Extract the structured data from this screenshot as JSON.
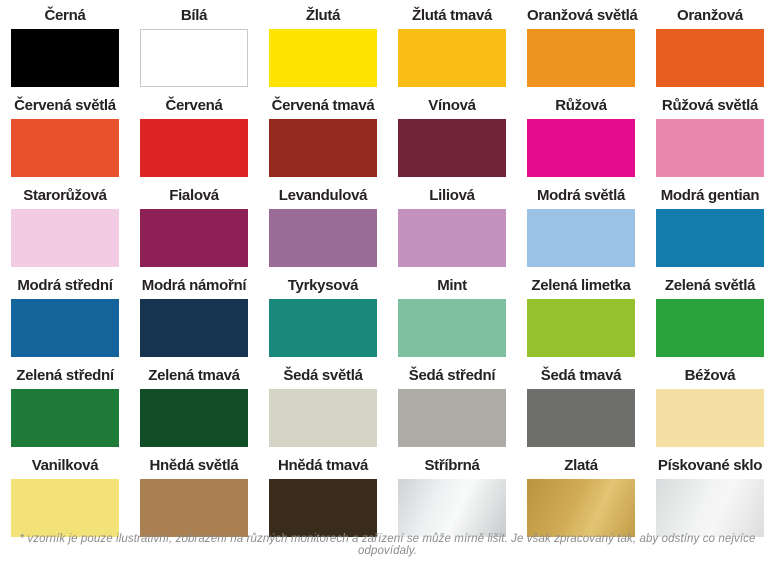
{
  "page": {
    "background": "#ffffff",
    "label_text_color": "#262223"
  },
  "footer": {
    "note": "* vzorník je pouze ilustrativní, zobrazení na různých monitorech a zařízení se může mírně lišit. Je však zpracovaný tak, aby odstíny co nejvíce odpovídaly."
  },
  "chart_data": {
    "type": "table",
    "title": "",
    "columns": [
      "name",
      "color"
    ],
    "rows": [
      [
        "Černá",
        "#000000"
      ],
      [
        "Bílá",
        "#ffffff"
      ],
      [
        "Žlutá",
        "#fce300"
      ],
      [
        "Žlutá tmavá",
        "#f8be15"
      ],
      [
        "Oranžová světlá",
        "#ef931f"
      ],
      [
        "Oranžová",
        "#e65e20"
      ],
      [
        "Červená světlá",
        "#e8512d"
      ],
      [
        "Červená",
        "#dc2423"
      ],
      [
        "Červená tmavá",
        "#95291f"
      ],
      [
        "Vínová",
        "#6f2437"
      ],
      [
        "Růžová",
        "#e50c8e"
      ],
      [
        "Růžová světlá",
        "#ea87ad"
      ],
      [
        "Starorůžová",
        "#f2cce2"
      ],
      [
        "Fialová",
        "#8d2156"
      ],
      [
        "Levandulová",
        "#9a6d99"
      ],
      [
        "Liliová",
        "#c492be"
      ],
      [
        "Modrá světlá",
        "#9bc2e5"
      ],
      [
        "Modrá gentian",
        "#147cad"
      ],
      [
        "Modrá střední",
        "#14639b"
      ],
      [
        "Modrá námořní",
        "#16334f"
      ],
      [
        "Tyrkysová",
        "#19897c"
      ],
      [
        "Mint",
        "#7dbf9e"
      ],
      [
        "Zelená limetka",
        "#95c12e"
      ],
      [
        "Zelená světlá",
        "#2ba33d"
      ],
      [
        "Zelená střední",
        "#1e7b37"
      ],
      [
        "Zelená tmavá",
        "#114e27"
      ],
      [
        "Šedá světlá",
        "#d6d3c7"
      ],
      [
        "Šedá střední",
        "#aeaca7"
      ],
      [
        "Šedá tmavá",
        "#6e6e6d"
      ],
      [
        "Béžová",
        "#f5e0a3"
      ],
      [
        "Vanilková",
        "#f3e278"
      ],
      [
        "Hnědá světlá",
        "#aa8052"
      ],
      [
        "Hnědá tmavá",
        "#3a2c1b"
      ],
      [
        "Stříbrná",
        "silver-gradient"
      ],
      [
        "Zlatá",
        "gold-gradient"
      ],
      [
        "Pískované sklo",
        "frosted-glass-gradient"
      ]
    ]
  },
  "swatches": [
    {
      "label": "Černá",
      "color": "#000000"
    },
    {
      "label": "Bílá",
      "color": "#ffffff",
      "border": "#c9c9c9"
    },
    {
      "label": "Žlutá",
      "color": "#fce300"
    },
    {
      "label": "Žlutá tmavá",
      "color": "#f8be15"
    },
    {
      "label": "Oranžová světlá",
      "color": "#ef931f"
    },
    {
      "label": "Oranžová",
      "color": "#e65e20"
    },
    {
      "label": "Červená světlá",
      "color": "#e8512d"
    },
    {
      "label": "Červená",
      "color": "#dc2423"
    },
    {
      "label": "Červená tmavá",
      "color": "#95291f"
    },
    {
      "label": "Vínová",
      "color": "#6f2437"
    },
    {
      "label": "Růžová",
      "color": "#e50c8e"
    },
    {
      "label": "Růžová světlá",
      "color": "#ea87ad"
    },
    {
      "label": "Starorůžová",
      "color": "#f2cce2"
    },
    {
      "label": "Fialová",
      "color": "#8d2156"
    },
    {
      "label": "Levandulová",
      "color": "#9a6d99"
    },
    {
      "label": "Liliová",
      "color": "#c492be"
    },
    {
      "label": "Modrá světlá",
      "color": "#9bc2e5"
    },
    {
      "label": "Modrá gentian",
      "color": "#147cad"
    },
    {
      "label": "Modrá střední",
      "color": "#14639b"
    },
    {
      "label": "Modrá námořní",
      "color": "#16334f"
    },
    {
      "label": "Tyrkysová",
      "color": "#19897c"
    },
    {
      "label": "Mint",
      "color": "#7dbf9e"
    },
    {
      "label": "Zelená limetka",
      "color": "#95c12e"
    },
    {
      "label": "Zelená světlá",
      "color": "#2ba33d"
    },
    {
      "label": "Zelená střední",
      "color": "#1e7b37"
    },
    {
      "label": "Zelená tmavá",
      "color": "#114e27"
    },
    {
      "label": "Šedá světlá",
      "color": "#d6d3c7"
    },
    {
      "label": "Šedá střední",
      "color": "#aeaca7"
    },
    {
      "label": "Šedá tmavá",
      "color": "#6e6e6d"
    },
    {
      "label": "Béžová",
      "color": "#f5e0a3"
    },
    {
      "label": "Vanilková",
      "color": "#f3e278"
    },
    {
      "label": "Hnědá světlá",
      "color": "#aa8052"
    },
    {
      "label": "Hnědá tmavá",
      "color": "#3a2c1b"
    },
    {
      "label": "Stříbrná",
      "gradient": {
        "angle": "115deg",
        "stops": [
          "#cfd1d3 0%",
          "#eef0f1 35%",
          "#f9fafa 55%",
          "#c8cacc 100%"
        ]
      }
    },
    {
      "label": "Zlatá",
      "gradient": {
        "angle": "115deg",
        "stops": [
          "#bb943f 0%",
          "#cfa953 40%",
          "#e2c472 65%",
          "#c29c47 100%"
        ]
      }
    },
    {
      "label": "Pískované sklo",
      "gradient": {
        "angle": "115deg",
        "stops": [
          "#d8d9da 0%",
          "#f3f4f4 45%",
          "#f6f6f6 60%",
          "#dcdddd 100%"
        ]
      }
    }
  ]
}
